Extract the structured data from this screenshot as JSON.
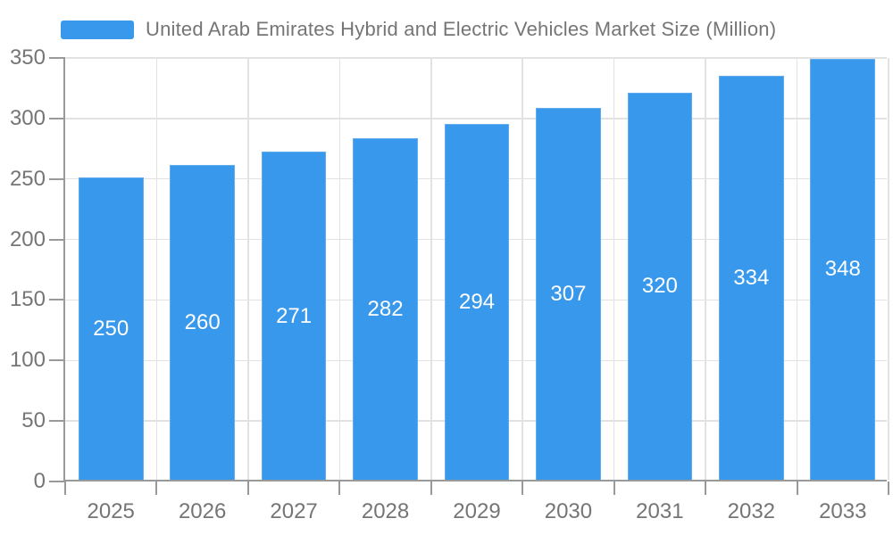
{
  "chart_data": {
    "type": "bar",
    "title": "United Arab Emirates Hybrid and Electric Vehicles Market Size (Million)",
    "categories": [
      "2025",
      "2026",
      "2027",
      "2028",
      "2029",
      "2030",
      "2031",
      "2032",
      "2033"
    ],
    "values": [
      250,
      260,
      271,
      282,
      294,
      307,
      320,
      334,
      348
    ],
    "xlabel": "",
    "ylabel": "",
    "ylim": [
      0,
      350
    ],
    "yticks": [
      0,
      50,
      100,
      150,
      200,
      250,
      300,
      350
    ],
    "grid": true,
    "legend_position": "top-left",
    "bar_labels_inside": true
  },
  "colors": {
    "bar": "#3898ec",
    "bar_edge": "#64acf0",
    "bar_label": "#ffffff",
    "axis_line": "#999999",
    "gridline": "#e2e2e2",
    "text": "#757575",
    "background": "#ffffff"
  }
}
